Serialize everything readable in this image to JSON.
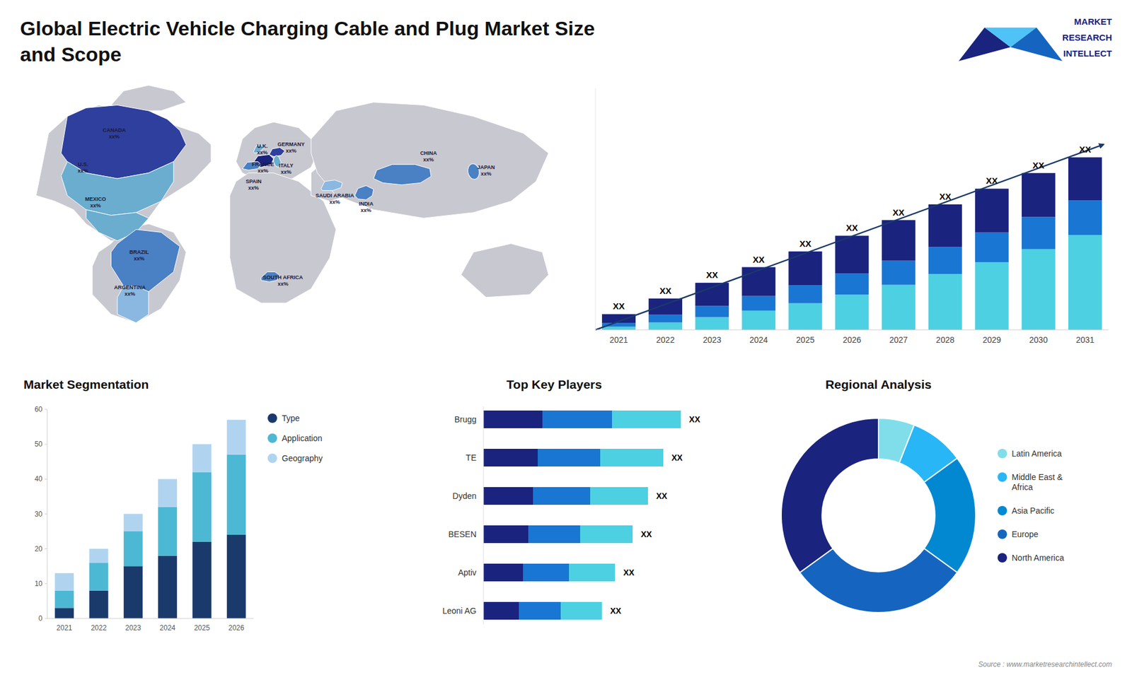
{
  "title": "Global Electric Vehicle Charging Cable and Plug Market Size\nand Scope",
  "annotations": [
    "MARKET",
    "RESEARCH",
    "INTELLECT",
    "Source : www.marketresearchintellect.com"
  ],
  "chart_data": [
    {
      "type": "map",
      "categories": [
        "CANADA",
        "U.S.",
        "MEXICO",
        "BRAZIL",
        "ARGENTINA",
        "U.K.",
        "FRANCE",
        "SPAIN",
        "GERMANY",
        "ITALY",
        "SOUTH AFRICA",
        "SAUDI ARABIA",
        "INDIA",
        "CHINA",
        "JAPAN"
      ],
      "colors": [
        "#2e3f9e",
        "#6aadcf",
        "#6aadcf",
        "#4a80c4",
        "#8ab8e0",
        "#6aadcf",
        "#1a237e",
        "#4a80c4",
        "#2e3f9e",
        "#6aadcf",
        "#4a80c4",
        "#8ab8e0",
        "#4a80c4",
        "#4a80c4",
        "#4a80c4"
      ],
      "annotations": [
        "xx%",
        "xx%",
        "xx%",
        "xx%",
        "xx%",
        "xx%",
        "xx%",
        "xx%",
        "xx%",
        "xx%",
        "xx%",
        "xx%",
        "xx%",
        "xx%",
        "xx%"
      ]
    },
    {
      "type": "bar",
      "stacked": true,
      "categories": [
        "2021",
        "2022",
        "2023",
        "2024",
        "2025",
        "2026",
        "2027",
        "2028",
        "2029",
        "2030",
        "2031"
      ],
      "series": [
        {
          "color": "#4dd0e1",
          "values": [
            0.2,
            0.47,
            0.81,
            1.22,
            1.7,
            2.25,
            2.87,
            3.56,
            4.32,
            5.15,
            6.05
          ]
        },
        {
          "color": "#1976d2",
          "values": [
            0.25,
            0.49,
            0.72,
            0.94,
            1.15,
            1.35,
            1.54,
            1.72,
            1.89,
            2.05,
            2.2
          ]
        },
        {
          "color": "#1a237e",
          "values": [
            0.55,
            1.04,
            1.47,
            1.84,
            2.15,
            2.4,
            2.59,
            2.72,
            2.79,
            2.8,
            2.75
          ]
        }
      ],
      "annotations": [
        "XX",
        "XX",
        "XX",
        "XX",
        "XX",
        "XX",
        "XX",
        "XX",
        "XX",
        "XX",
        "XX"
      ],
      "ylim": [
        0,
        15.4
      ],
      "tick_labels": "x"
    },
    {
      "type": "bar",
      "stacked": true,
      "title": "Market Segmentation",
      "categories": [
        "2021",
        "2022",
        "2023",
        "2024",
        "2025",
        "2026"
      ],
      "series": [
        {
          "name": "Type",
          "color": "#1a3a6b",
          "values": [
            3,
            8,
            15,
            18,
            22,
            24
          ]
        },
        {
          "name": "Application",
          "color": "#4db8d4",
          "values": [
            5,
            8,
            10,
            14,
            20,
            23
          ]
        },
        {
          "name": "Geography",
          "color": "#b0d4f0",
          "values": [
            5,
            4,
            5,
            8,
            8,
            10
          ]
        }
      ],
      "ylim": [
        0,
        60
      ],
      "yticks": [
        0,
        10,
        20,
        30,
        40,
        50,
        60
      ],
      "legend": "right"
    },
    {
      "type": "bar",
      "orientation": "horizontal",
      "title": "Top Key Players",
      "categories": [
        "Brugg",
        "TE",
        "Dyden",
        "BESEN",
        "Aptiv",
        "Leoni AG"
      ],
      "values": [
        0.9,
        0.82,
        0.75,
        0.68,
        0.6,
        0.54
      ],
      "colors": [
        "#1a237e",
        "#1976d2",
        "#4dd0e1"
      ],
      "annotations": [
        "XX",
        "XX",
        "XX",
        "XX",
        "XX",
        "XX"
      ],
      "xlim": [
        0,
        1
      ],
      "tick_labels": "y"
    },
    {
      "type": "pie",
      "title": "Regional Analysis",
      "categories": [
        "Latin America",
        "Middle East &\nAfrica",
        "Asia Pacific",
        "Europe",
        "North America"
      ],
      "values": [
        6,
        9,
        20,
        30,
        35
      ],
      "colors": [
        "#80deea",
        "#29b6f6",
        "#0288d1",
        "#1565c0",
        "#1a237e"
      ],
      "legend": "right"
    }
  ]
}
